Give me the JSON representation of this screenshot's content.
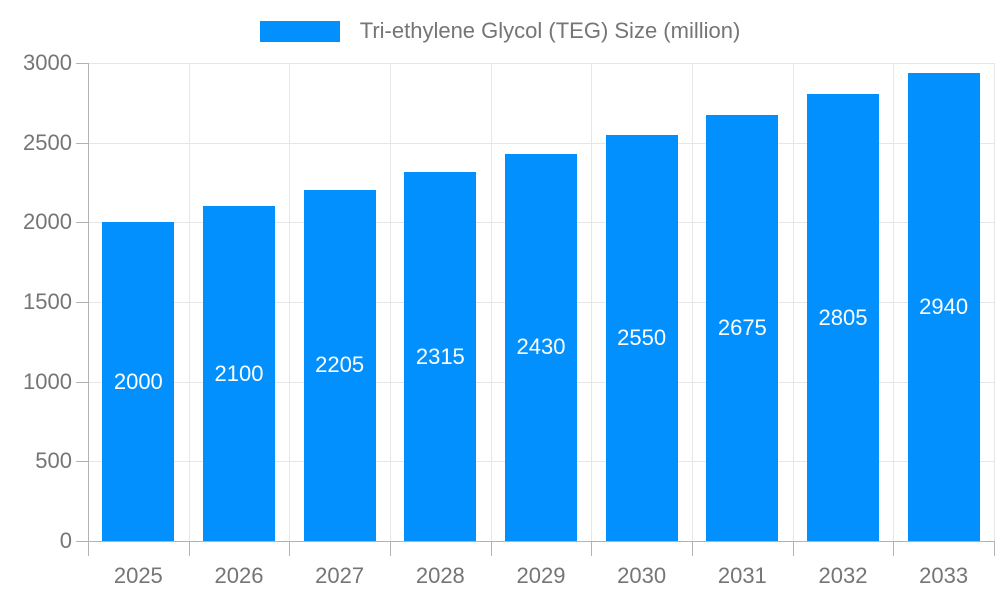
{
  "chart_data": {
    "type": "bar",
    "title": "Tri-ethylene Glycol (TEG) Size (million)",
    "categories": [
      "2025",
      "2026",
      "2027",
      "2028",
      "2029",
      "2030",
      "2031",
      "2032",
      "2033"
    ],
    "values": [
      2000,
      2100,
      2205,
      2315,
      2430,
      2550,
      2675,
      2805,
      2940
    ],
    "bar_labels": [
      "2000",
      "2100",
      "2205",
      "2315",
      "2430",
      "2550",
      "2675",
      "2805",
      "2940"
    ],
    "xlabel": "",
    "ylabel": "",
    "ylim": [
      0,
      3000
    ],
    "ytick_step": 500,
    "ytick_labels": [
      "0",
      "500",
      "1000",
      "1500",
      "2000",
      "2500",
      "3000"
    ],
    "grid": "both",
    "legend_position": "top-center",
    "colors": {
      "bar": "#0190fe",
      "gridline": "#e6e6e6",
      "axis_line": "#b3b3b3",
      "axis_text": "#757575",
      "bar_label_text": "#ffffff",
      "legend_text": "#757575",
      "background": "#ffffff"
    }
  }
}
